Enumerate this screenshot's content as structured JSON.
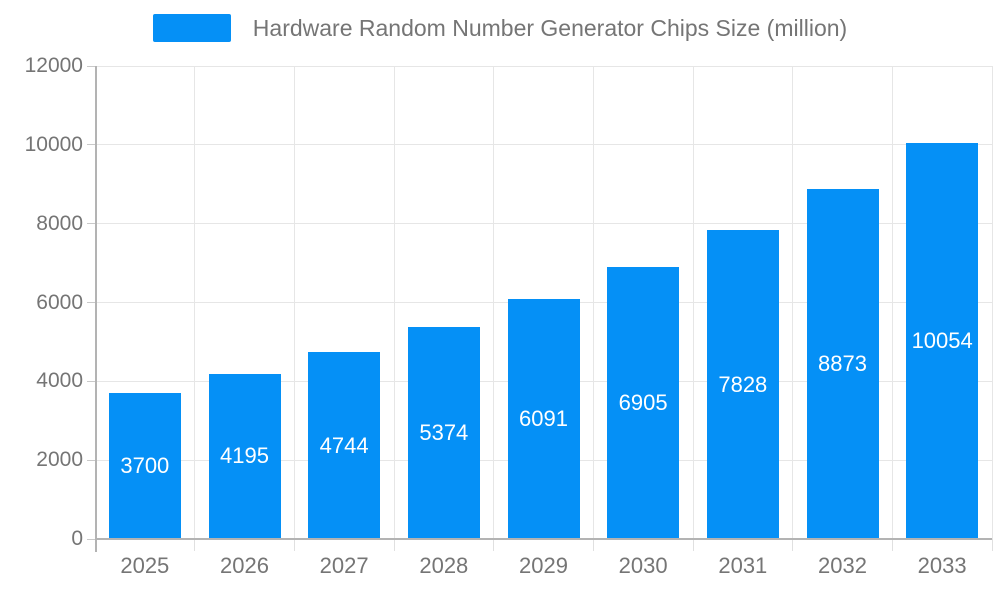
{
  "chart_data": {
    "type": "bar",
    "title": "Hardware Random Number Generator Chips Size (million)",
    "legend_position": "top",
    "legend_entries": [
      "Hardware Random Number Generator Chips Size (million)"
    ],
    "categories": [
      "2025",
      "2026",
      "2027",
      "2028",
      "2029",
      "2030",
      "2031",
      "2032",
      "2033"
    ],
    "series": [
      {
        "name": "Hardware Random Number Generator Chips Size (million)",
        "values": [
          3700,
          4195,
          4744,
          5374,
          6091,
          6905,
          7828,
          8873,
          10054
        ]
      }
    ],
    "bar_value_labels": [
      "3700",
      "4195",
      "4744",
      "5374",
      "6091",
      "6905",
      "7828",
      "8873",
      "10054"
    ],
    "xlabel": "",
    "ylabel": "",
    "ylim": [
      0,
      12000
    ],
    "yticks": [
      0,
      2000,
      4000,
      6000,
      8000,
      10000,
      12000
    ],
    "grid": true,
    "colors": {
      "bar": "#0590f6",
      "bar_label": "#ffffff",
      "axis_line": "#b3b3b3",
      "grid_line": "#e6e6e6",
      "tick_label": "#757575",
      "legend_text": "#757575",
      "background": "#ffffff"
    }
  }
}
